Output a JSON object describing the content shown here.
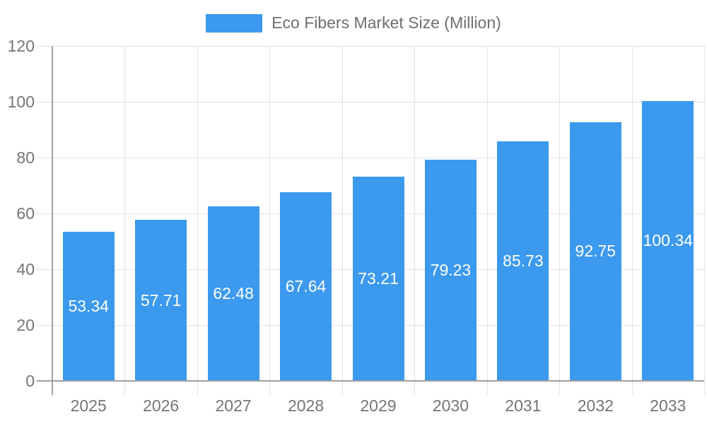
{
  "legend": {
    "label": "Eco Fibers Market Size (Million)"
  },
  "chart_data": {
    "type": "bar",
    "title": "",
    "series_name": "Eco Fibers Market Size (Million)",
    "categories": [
      "2025",
      "2026",
      "2027",
      "2028",
      "2029",
      "2030",
      "2031",
      "2032",
      "2033"
    ],
    "values": [
      53.34,
      57.71,
      62.48,
      67.64,
      73.21,
      79.23,
      85.73,
      92.75,
      100.34
    ],
    "value_labels": [
      "53.34",
      "57.71",
      "62.48",
      "67.64",
      "73.21",
      "79.23",
      "85.73",
      "92.75",
      "100.34"
    ],
    "xlabel": "",
    "ylabel": "",
    "ylim": [
      0,
      120
    ],
    "ytick_step": 20,
    "yticks": [
      0,
      20,
      40,
      60,
      80,
      100,
      120
    ],
    "grid": true,
    "legend_position": "top-center",
    "colors": {
      "bar": "#3B99EE",
      "grid": "#E2E2E2",
      "axis": "#A0A0A0",
      "text": "#757575",
      "value_label": "#FFFFFF",
      "background": "#FFFFFF"
    }
  }
}
